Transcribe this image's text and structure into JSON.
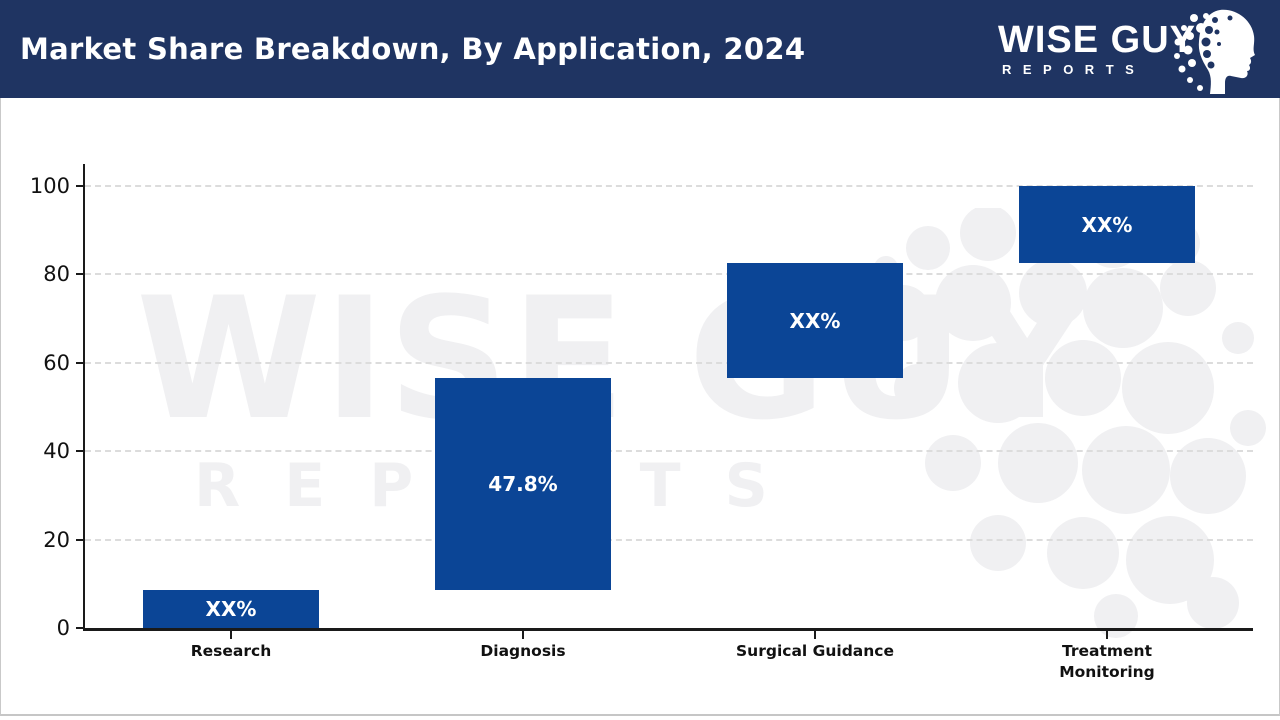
{
  "header": {
    "title": "Market Share Breakdown, By Application, 2024",
    "logo": {
      "name": "WISE GUY",
      "sub": "REPORTS"
    }
  },
  "watermark": {
    "line1": "WISE GUY",
    "line2": "REPORTS"
  },
  "colors": {
    "header_bg": "#1f3462",
    "bar": "#0b4596",
    "bar_label": "#ffffff",
    "grid": "#dcdcdc",
    "axis": "#1a1a1a",
    "watermark": "#f0f0f2",
    "panel_border": "#c9c9c9"
  },
  "chart_data": {
    "type": "bar",
    "subtype": "waterfall (floating segments stacking to 100%)",
    "title": "Market Share Breakdown, By Application, 2024",
    "categories": [
      "Research",
      "Diagnosis",
      "Surgical Guidance",
      "Treatment Monitoring"
    ],
    "category_label_lines": [
      [
        "Research"
      ],
      [
        "Diagnosis"
      ],
      [
        "Surgical Guidance"
      ],
      [
        "Treatment",
        "Monitoring"
      ]
    ],
    "segments": [
      {
        "category": "Research",
        "slug": "research",
        "start": 0,
        "end": 8.7,
        "value": 8.7,
        "value_label": "XX%"
      },
      {
        "category": "Diagnosis",
        "slug": "diagnosis",
        "start": 8.7,
        "end": 56.5,
        "value": 47.8,
        "value_label": "47.8%"
      },
      {
        "category": "Surgical Guidance",
        "slug": "surgical-guidance",
        "start": 56.5,
        "end": 82.5,
        "value": 26.0,
        "value_label": "XX%"
      },
      {
        "category": "Treatment Monitoring",
        "slug": "treatment-monitoring",
        "start": 82.5,
        "end": 100,
        "value": 17.5,
        "value_label": "XX%"
      }
    ],
    "yticks": [
      0,
      20,
      40,
      60,
      80,
      100
    ],
    "ylim": [
      0,
      105
    ],
    "xlabel": "",
    "ylabel": "",
    "grid": "horizontal dashed",
    "legend": "none"
  }
}
